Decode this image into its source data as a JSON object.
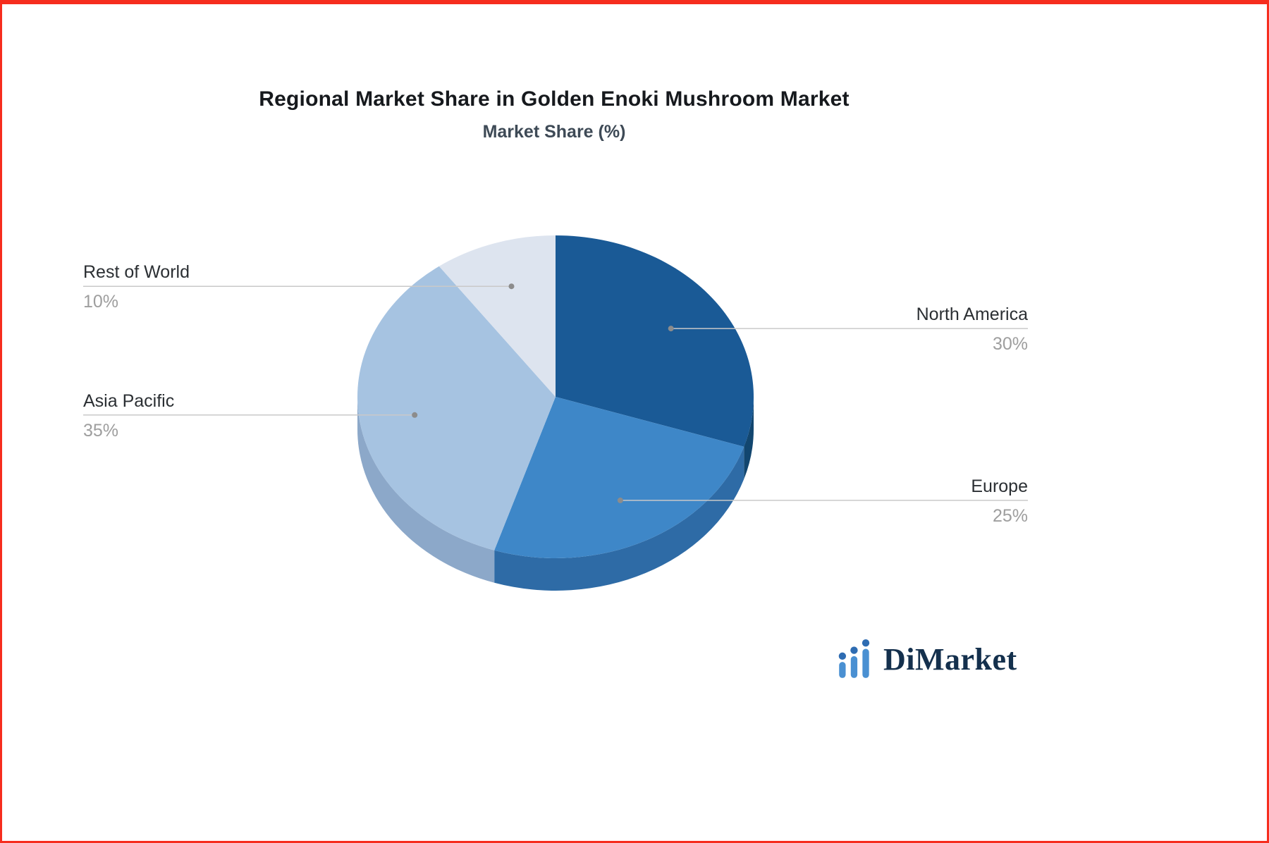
{
  "chart_data": {
    "type": "pie",
    "title": "Regional Market Share in Golden Enoki Mushroom Market",
    "subtitle": "Market Share (%)",
    "unit": "%",
    "style": "pie-3d",
    "start_angle_deg": 0,
    "clockwise": true,
    "slices": [
      {
        "label": "North America",
        "value": 30,
        "display": "30%",
        "color": "#1a5a96",
        "side_color": "#12466f"
      },
      {
        "label": "Europe",
        "value": 25,
        "display": "25%",
        "color": "#3e87c8",
        "side_color": "#2e6ba6"
      },
      {
        "label": "Asia Pacific",
        "value": 35,
        "display": "35%",
        "color": "#a6c3e1",
        "side_color": "#8ca8c9"
      },
      {
        "label": "Rest of World",
        "value": 10,
        "display": "10%",
        "color": "#dde4ef",
        "side_color": "#b9c4d6"
      }
    ],
    "label_color": "#2b2f33",
    "value_color": "#9e9e9e",
    "leader_line_color": "#c9c9c9",
    "dot_color": "#8c8c8c",
    "legend_position": "none",
    "grid": false
  },
  "branding": {
    "logo_text": "DiMarket",
    "logo_icon": "bar-chart-icon",
    "logo_text_color": "#14304d",
    "icon_color": "#4a90d2",
    "icon_dot_color": "#2e6cb2"
  }
}
